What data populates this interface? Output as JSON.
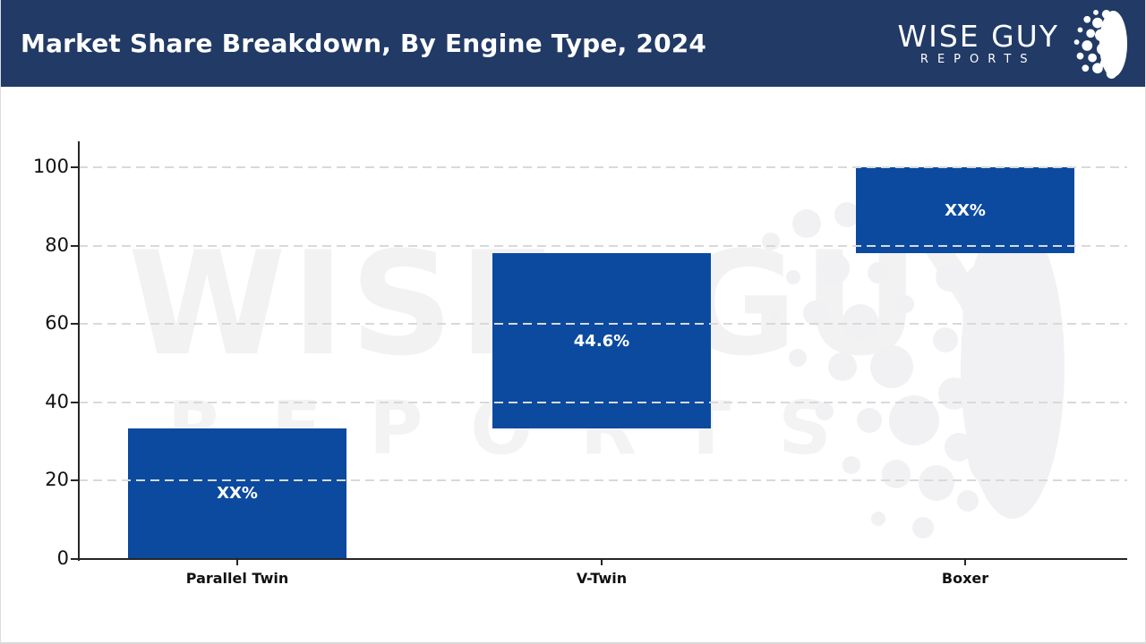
{
  "header": {
    "title": "Market Share Breakdown, By Engine Type, 2024",
    "logo": {
      "line1": "WISE GUY",
      "line2": "REPORTS"
    }
  },
  "watermark": {
    "line1": "WISE GUY",
    "line2": "REPORTS"
  },
  "chart_data": {
    "type": "bar",
    "subtype": "waterfall",
    "title": "Market Share Breakdown, By Engine Type, 2024",
    "categories": [
      "Parallel Twin",
      "V-Twin",
      "Boxer"
    ],
    "segments": [
      {
        "category": "Parallel Twin",
        "value": 33.4,
        "cumulative_start": 0,
        "cumulative_end": 33.4,
        "label": "XX%"
      },
      {
        "category": "V-Twin",
        "value": 44.6,
        "cumulative_start": 33.4,
        "cumulative_end": 78.0,
        "label": "44.6%"
      },
      {
        "category": "Boxer",
        "value": 22.0,
        "cumulative_start": 78.0,
        "cumulative_end": 100.0,
        "label": "XX%"
      }
    ],
    "ylim": [
      0,
      100
    ],
    "yticks": [
      0,
      20,
      40,
      60,
      80,
      100
    ],
    "grid": "dashed-horizontal-over-bars",
    "legend": "none",
    "bar_color": "#0b4a9f",
    "bar_label_color": "#ffffff",
    "axis_color": "#262626",
    "grid_color": "#d9d9d9",
    "header_color": "#213a66"
  }
}
